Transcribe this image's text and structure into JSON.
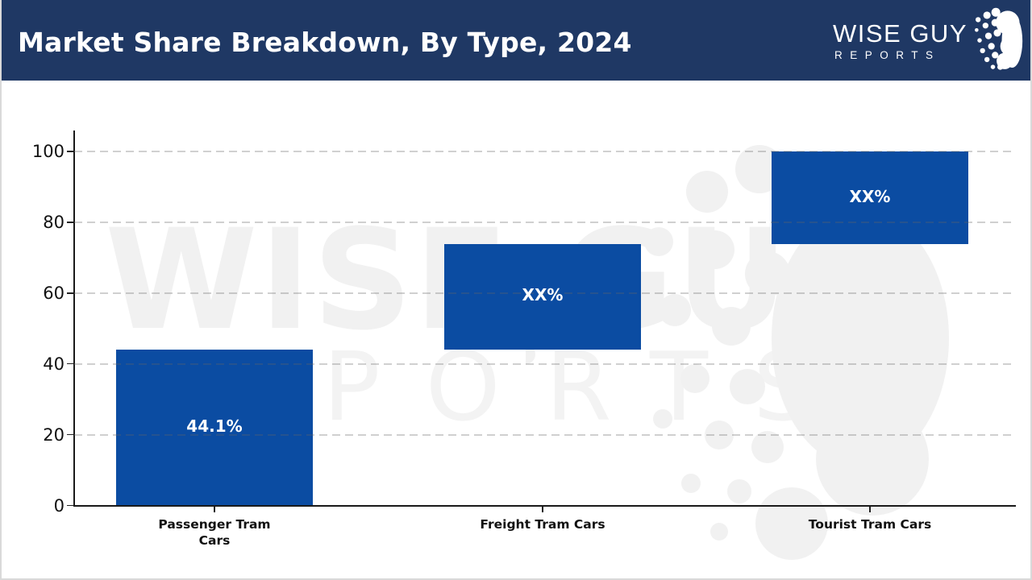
{
  "page": {
    "background": "#ffffff",
    "border_color": "#d9d9d9"
  },
  "header": {
    "title": "Market Share Breakdown, By Type, 2024",
    "background": "#1F3864",
    "text_color": "#ffffff",
    "logo": {
      "line1": "WISE GUY",
      "line2": "REPORTS",
      "face_icon": "dotted-face-profile"
    }
  },
  "chart_data": {
    "type": "bar",
    "variant": "waterfall",
    "title": "Market Share Breakdown, By Type, 2024",
    "categories": [
      "Passenger Tram\nCars",
      "Freight Tram Cars",
      "Tourist Tram Cars"
    ],
    "series": [
      {
        "name": "Market Share (%)",
        "segments": [
          {
            "category": "Passenger Tram Cars",
            "start": 0,
            "end": 44.1,
            "label": "44.1%"
          },
          {
            "category": "Freight Tram Cars",
            "start": 44.1,
            "end": 73.8,
            "label": "XX%"
          },
          {
            "category": "Tourist Tram Cars",
            "start": 73.8,
            "end": 100,
            "label": "XX%"
          }
        ]
      }
    ],
    "ylim": [
      0,
      100
    ],
    "yticks": [
      0,
      20,
      40,
      60,
      80,
      100
    ],
    "xlabel": "",
    "ylabel": "",
    "bar_color": "#0B4CA2",
    "bar_label_color": "#ffffff",
    "grid": {
      "visible": true,
      "style": "dashed",
      "color": "#d6d6d6",
      "above_bars": true
    },
    "legend": "none"
  },
  "watermark": {
    "line1": "WISE GUY",
    "line2": "REPORTS",
    "face_icon": "dotted-face-profile"
  }
}
